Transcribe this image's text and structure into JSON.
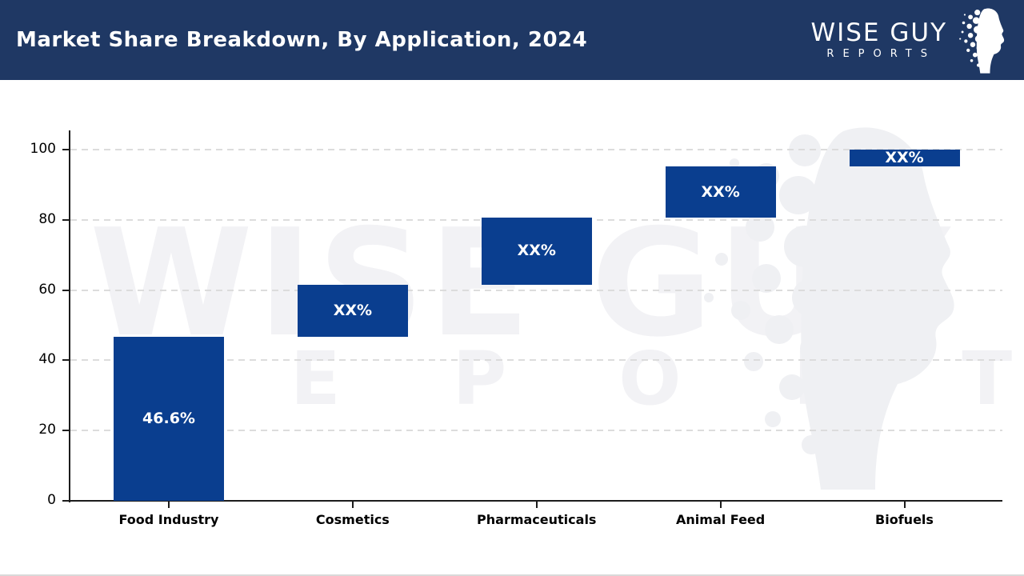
{
  "header": {
    "title": "Market Share Breakdown, By Application, 2024",
    "bg_color": "#1f3864",
    "logo": {
      "line1": "WISE GUY",
      "line2": "REPORTS"
    }
  },
  "watermark": {
    "line1": "WISE GUY",
    "line2": "R E P O R T S"
  },
  "chart_data": {
    "type": "bar",
    "subtype": "waterfall",
    "title": "Market Share Breakdown, By Application, 2024",
    "xlabel": "",
    "ylabel": "",
    "categories": [
      "Food Industry",
      "Cosmetics",
      "Pharmaceuticals",
      "Animal Feed",
      "Biofuels"
    ],
    "segments": [
      {
        "category": "Food Industry",
        "start": 0,
        "end": 46.6,
        "label": "46.6%"
      },
      {
        "category": "Cosmetics",
        "start": 46.6,
        "end": 61.6,
        "label": "XX%"
      },
      {
        "category": "Pharmaceuticals",
        "start": 61.6,
        "end": 80.6,
        "label": "XX%"
      },
      {
        "category": "Animal Feed",
        "start": 80.6,
        "end": 95.2,
        "label": "XX%"
      },
      {
        "category": "Biofuels",
        "start": 95.2,
        "end": 100,
        "label": "XX%"
      }
    ],
    "y_ticks": [
      0,
      20,
      40,
      60,
      80,
      100
    ],
    "ylim": [
      0,
      105
    ],
    "grid": true,
    "grid_style": "dashed",
    "legend": false,
    "bar_color": "#0a3e8f",
    "bar_label_color": "#ffffff",
    "axis_color": "#1c1c1c",
    "grid_color": "#dcdcdc"
  }
}
